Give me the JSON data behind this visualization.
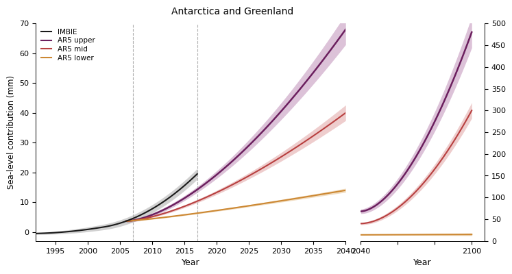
{
  "title": "Antarctica and Greenland",
  "ylabel": "Sea-level contribution (mm)",
  "xlabel": "Year",
  "bg_color": "#ffffff",
  "imbie_color": "#1a1a1a",
  "ar5_upper_color": "#6b1f5e",
  "ar5_upper_fill": "#9b5090",
  "ar5_mid_color": "#b84040",
  "ar5_mid_fill": "#d07070",
  "ar5_lower_color": "#cc8833",
  "ar5_lower_fill": "#ddaa66",
  "imbie_fill": "#999999",
  "vline_years": [
    2007,
    2017
  ],
  "left_xlim": [
    1992,
    2040
  ],
  "left_ylim": [
    -3,
    70
  ],
  "left_yticks": [
    0,
    10,
    20,
    30,
    40,
    50,
    60,
    70
  ],
  "right_xlim": [
    2040,
    2107
  ],
  "right_ylim": [
    0,
    500
  ],
  "right_yticks": [
    0,
    50,
    100,
    150,
    200,
    250,
    300,
    350,
    400,
    450,
    500
  ],
  "legend_labels": [
    "IMBIE",
    "AR5 upper",
    "AR5 mid",
    "AR5 lower"
  ]
}
